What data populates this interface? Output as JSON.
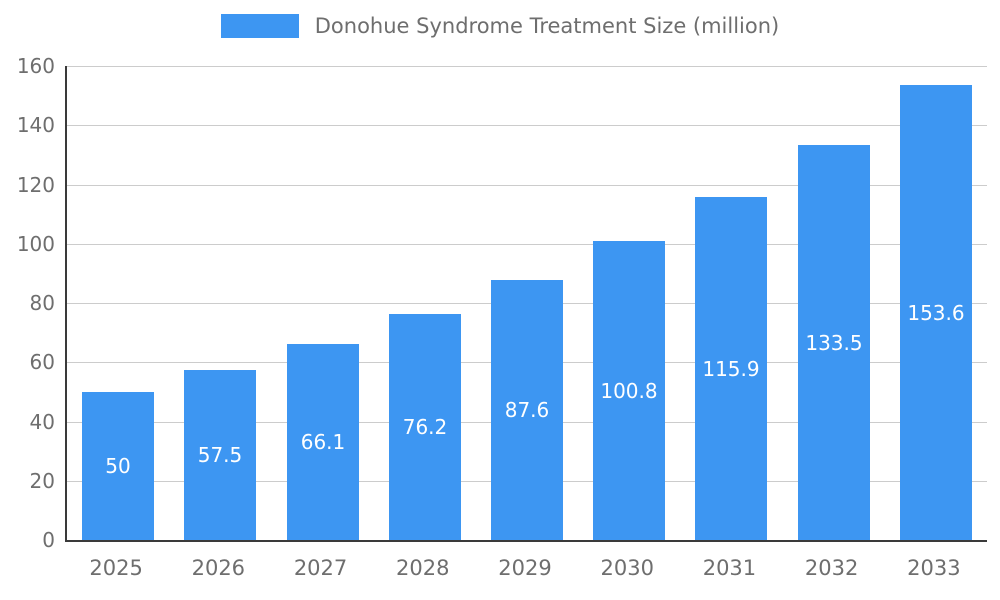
{
  "chart_data": {
    "type": "bar",
    "title": "Donohue Syndrome Treatment Size (million)",
    "categories": [
      "2025",
      "2026",
      "2027",
      "2028",
      "2029",
      "2030",
      "2031",
      "2032",
      "2033"
    ],
    "values": [
      50,
      57.5,
      66.1,
      76.2,
      87.6,
      100.8,
      115.9,
      133.5,
      153.6
    ],
    "value_labels": [
      "50",
      "57.5",
      "66.1",
      "76.2",
      "87.6",
      "100.8",
      "115.9",
      "133.5",
      "153.6"
    ],
    "xlabel": "",
    "ylabel": "",
    "ylim": [
      0,
      160
    ],
    "yticks": [
      0,
      20,
      40,
      60,
      80,
      100,
      120,
      140,
      160
    ],
    "grid": true,
    "legend_position": "top",
    "colors": {
      "bar": "#3d96f2",
      "value_label": "#ffffff",
      "axis_text": "#6e6e6e",
      "gridline": "#cccccc",
      "axis_line": "#3a3a3a"
    }
  }
}
